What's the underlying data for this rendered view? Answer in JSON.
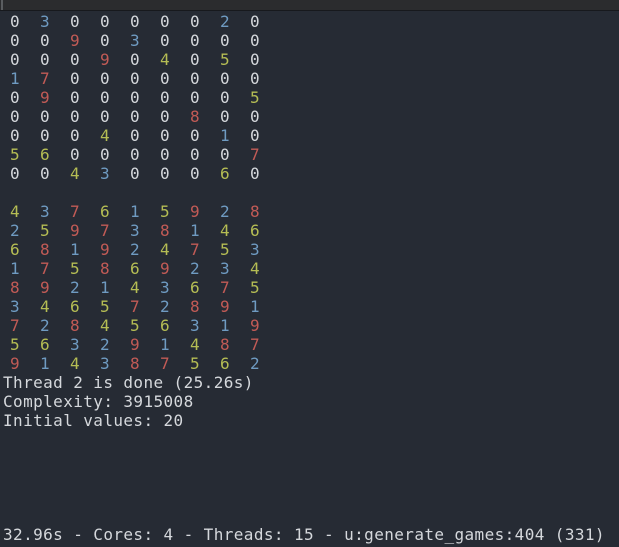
{
  "window": {
    "background": "#262b34",
    "top_edge_color": "#2b2c2e",
    "foreground": "#d5d8dc"
  },
  "grids": {
    "puzzle": [
      [
        0,
        3,
        0,
        0,
        0,
        0,
        0,
        2,
        0
      ],
      [
        0,
        0,
        9,
        0,
        3,
        0,
        0,
        0,
        0
      ],
      [
        0,
        0,
        0,
        9,
        0,
        4,
        0,
        5,
        0
      ],
      [
        1,
        7,
        0,
        0,
        0,
        0,
        0,
        0,
        0
      ],
      [
        0,
        9,
        0,
        0,
        0,
        0,
        0,
        0,
        5
      ],
      [
        0,
        0,
        0,
        0,
        0,
        0,
        8,
        0,
        0
      ],
      [
        0,
        0,
        0,
        4,
        0,
        0,
        0,
        1,
        0
      ],
      [
        5,
        6,
        0,
        0,
        0,
        0,
        0,
        0,
        7
      ],
      [
        0,
        0,
        4,
        3,
        0,
        0,
        0,
        6,
        0
      ]
    ],
    "solution": [
      [
        4,
        3,
        7,
        6,
        1,
        5,
        9,
        2,
        8
      ],
      [
        2,
        5,
        9,
        7,
        3,
        8,
        1,
        4,
        6
      ],
      [
        6,
        8,
        1,
        9,
        2,
        4,
        7,
        5,
        3
      ],
      [
        1,
        7,
        5,
        8,
        6,
        9,
        2,
        3,
        4
      ],
      [
        8,
        9,
        2,
        1,
        4,
        3,
        6,
        7,
        5
      ],
      [
        3,
        4,
        6,
        5,
        7,
        2,
        8,
        9,
        1
      ],
      [
        7,
        2,
        8,
        4,
        5,
        6,
        3,
        1,
        9
      ],
      [
        5,
        6,
        3,
        2,
        9,
        1,
        4,
        8,
        7
      ],
      [
        9,
        1,
        4,
        3,
        8,
        7,
        5,
        6,
        2
      ]
    ],
    "digit_colors": {
      "zero": "#d5d8dc",
      "low_1_to_3": "#6f9bc2",
      "mid_4_to_6": "#b5bd54",
      "high_7_to_9": "#c25b56"
    }
  },
  "messages": {
    "thread_done": "Thread 2 is done (25.26s)",
    "complexity": "Complexity: 3915008",
    "initial_values": "Initial values: 20"
  },
  "status_bar": {
    "text": "32.96s - Cores: 4 - Threads: 15 - u:generate_games:404 (331)",
    "elapsed": "32.96s",
    "cores": "4",
    "threads": "15",
    "function": "u:generate_games:404 (331)"
  }
}
